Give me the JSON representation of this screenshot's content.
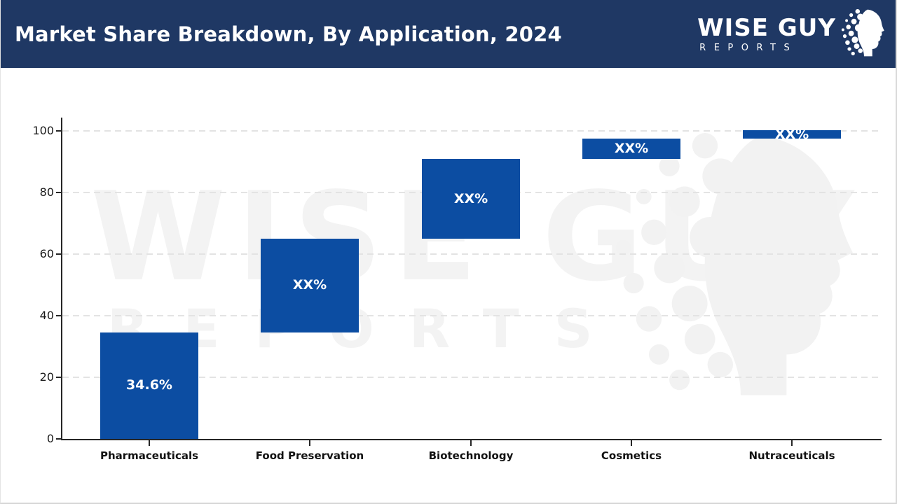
{
  "header": {
    "title": "Market Share Breakdown, By Application, 2024",
    "logo": {
      "line1": "WISE GUY",
      "line2": "REPORTS"
    }
  },
  "watermark": {
    "line1": "WISE GUY",
    "line2": "REPORTS"
  },
  "chart_data": {
    "type": "bar",
    "subtype": "floating-range-columns (waterfall-style market share breakdown)",
    "title": "Market Share Breakdown, By Application, 2024",
    "categories": [
      "Pharmaceuticals",
      "Food Preservation",
      "Biotechnology",
      "Cosmetics",
      "Nutraceuticals"
    ],
    "series": [
      {
        "name": "Market share segment",
        "ranges": [
          {
            "category": "Pharmaceuticals",
            "start": 0,
            "end": 34.6,
            "label": "34.6%"
          },
          {
            "category": "Food Preservation",
            "start": 34.6,
            "end": 65.0,
            "label": "XX%"
          },
          {
            "category": "Biotechnology",
            "start": 65.0,
            "end": 90.9,
            "label": "XX%"
          },
          {
            "category": "Cosmetics",
            "start": 90.9,
            "end": 97.4,
            "label": "XX%"
          },
          {
            "category": "Nutraceuticals",
            "start": 97.4,
            "end": 100.3,
            "label": "XX%"
          }
        ]
      }
    ],
    "xlabel": "",
    "ylabel": "",
    "yticks": [
      0,
      20,
      40,
      60,
      80,
      100
    ],
    "ylim": [
      0,
      104
    ],
    "grid": "horizontal dashed light-gray",
    "legend": "none",
    "bar_color": "#0c4da2",
    "bar_label_color": "#ffffff"
  },
  "colors": {
    "header_bg": "#1f3864",
    "bar": "#0c4da2",
    "axis": "#262626",
    "grid": "#e3e3e3",
    "watermark": "#f3f3f3",
    "figure_border": "#d9d9d9"
  }
}
